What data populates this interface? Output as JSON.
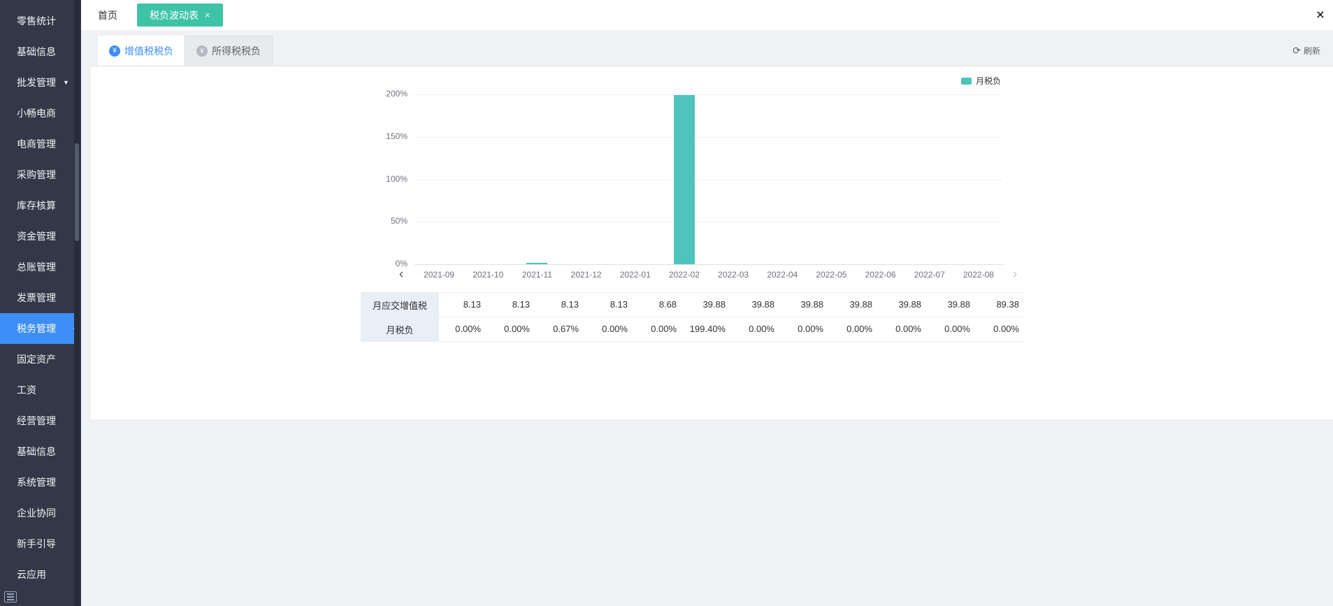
{
  "icons": {
    "close": "×",
    "refresh": "⟳",
    "prev": "‹",
    "next": "›",
    "caret": "▼",
    "coin": "¥"
  },
  "colors": {
    "sidebar_bg": "#323848",
    "active_menu_bg": "#3e8ef7",
    "top_tab_active_bg": "#3fc3a7",
    "bar_color": "#4ec4bc",
    "table_label_bg": "#e9eef7",
    "panel_tab_active_text": "#3d8ff0"
  },
  "sidebar": {
    "items": [
      {
        "label": "零售统计",
        "active": false,
        "has_arrow": false
      },
      {
        "label": "基础信息",
        "active": false,
        "has_arrow": false
      },
      {
        "label": "批发管理",
        "active": false,
        "has_arrow": true
      },
      {
        "label": "小畅电商",
        "active": false,
        "has_arrow": false
      },
      {
        "label": "电商管理",
        "active": false,
        "has_arrow": false
      },
      {
        "label": "采购管理",
        "active": false,
        "has_arrow": false
      },
      {
        "label": "库存核算",
        "active": false,
        "has_arrow": false
      },
      {
        "label": "资金管理",
        "active": false,
        "has_arrow": false
      },
      {
        "label": "总账管理",
        "active": false,
        "has_arrow": false
      },
      {
        "label": "发票管理",
        "active": false,
        "has_arrow": false
      },
      {
        "label": "税务管理",
        "active": true,
        "has_arrow": false
      },
      {
        "label": "固定资产",
        "active": false,
        "has_arrow": false
      },
      {
        "label": "工资",
        "active": false,
        "has_arrow": false
      },
      {
        "label": "经营管理",
        "active": false,
        "has_arrow": false
      },
      {
        "label": "基础信息",
        "active": false,
        "has_arrow": false
      },
      {
        "label": "系统管理",
        "active": false,
        "has_arrow": false
      },
      {
        "label": "企业协同",
        "active": false,
        "has_arrow": false
      },
      {
        "label": "新手引导",
        "active": false,
        "has_arrow": false
      },
      {
        "label": "云应用",
        "active": false,
        "has_arrow": false
      }
    ]
  },
  "tabbar": {
    "tabs": [
      {
        "label": "首页",
        "active": false,
        "closable": false
      },
      {
        "label": "税负波动表",
        "active": true,
        "closable": true
      }
    ]
  },
  "panel": {
    "tabs": [
      {
        "label": "增值税税负",
        "active": true
      },
      {
        "label": "所得税税负",
        "active": false
      }
    ],
    "refresh_label": "刷新"
  },
  "chart_data": {
    "type": "bar",
    "title": "",
    "legend": [
      {
        "label": "月税负",
        "color": "#4ec4bc"
      }
    ],
    "categories": [
      "2021-09",
      "2021-10",
      "2021-11",
      "2021-12",
      "2022-01",
      "2022-02",
      "2022-03",
      "2022-04",
      "2022-05",
      "2022-06",
      "2022-07",
      "2022-08"
    ],
    "series": [
      {
        "name": "月税负",
        "values": [
          0,
          0,
          0.67,
          0,
          0,
          199.4,
          0,
          0,
          0,
          0,
          0,
          0
        ]
      }
    ],
    "xlabel": "",
    "ylabel": "",
    "ylim": [
      0,
      200
    ],
    "yticks": [
      "0%",
      "50%",
      "100%",
      "150%",
      "200%"
    ],
    "grid": true,
    "legend_position": "top-right",
    "bar_color": "#4ec4bc"
  },
  "table": {
    "rows": [
      {
        "label": "月应交增值税",
        "values": [
          "8.13",
          "8.13",
          "8.13",
          "8.13",
          "8.68",
          "39.88",
          "39.88",
          "39.88",
          "39.88",
          "39.88",
          "39.88",
          "89.38"
        ]
      },
      {
        "label": "月税负",
        "values": [
          "0.00%",
          "0.00%",
          "0.67%",
          "0.00%",
          "0.00%",
          "199.40%",
          "0.00%",
          "0.00%",
          "0.00%",
          "0.00%",
          "0.00%",
          "0.00%"
        ]
      }
    ]
  }
}
